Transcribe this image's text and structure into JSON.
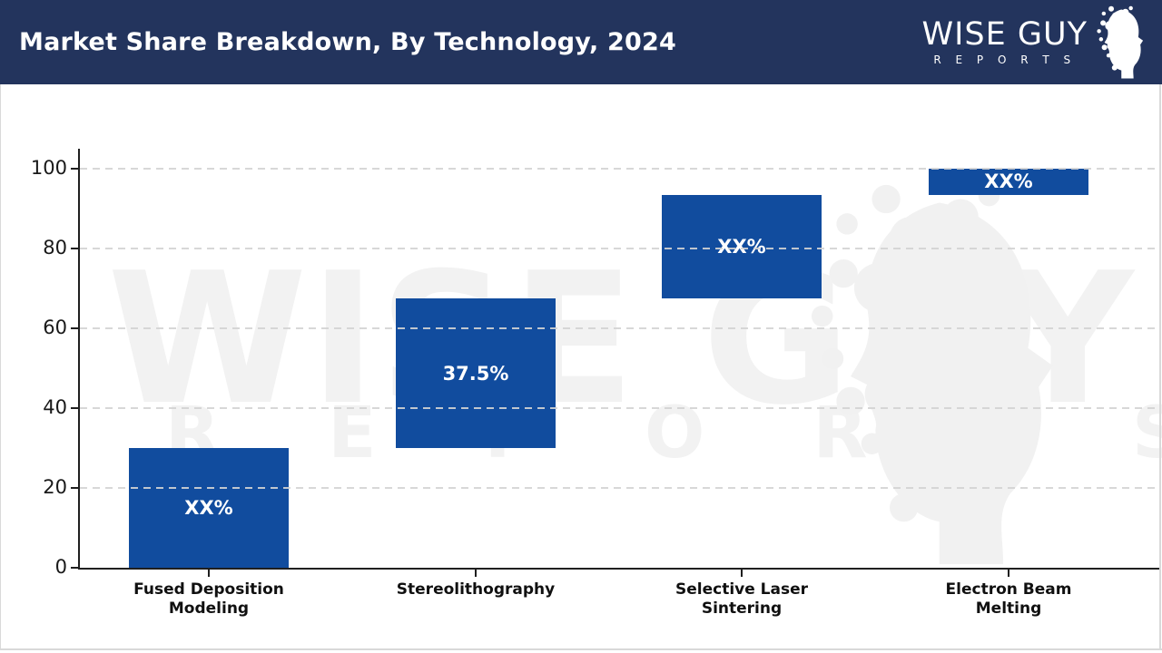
{
  "header": {
    "title": "Market Share Breakdown, By Technology, 2024",
    "logo": {
      "name": "WISE GUY",
      "subtitle": "R E P O R T S"
    }
  },
  "watermark": {
    "name": "WISE GUY",
    "subtitle": "R E P O R T S"
  },
  "colors": {
    "header_bg": "#23345d",
    "bar": "#114c9e",
    "grid": "#d3d3d3",
    "axis": "#1f1f1f",
    "watermark": "#f2f2f2",
    "value_label": "#ffffff"
  },
  "chart_data": {
    "type": "bar",
    "variant": "floating-segment waterfall (stacked market-share breakdown)",
    "title": "Market Share Breakdown, By Technology, 2024",
    "categories": [
      "Fused Deposition Modeling",
      "Stereolithography",
      "Selective Laser Sintering",
      "Electron Beam Melting"
    ],
    "category_label_lines": [
      [
        "Fused Deposition",
        "Modeling"
      ],
      [
        "Stereolithography"
      ],
      [
        "Selective Laser",
        "Sintering"
      ],
      [
        "Electron Beam",
        "Melting"
      ]
    ],
    "segments": [
      {
        "category": "Fused Deposition Modeling",
        "start": 0,
        "end": 30,
        "value_label": "XX%"
      },
      {
        "category": "Stereolithography",
        "start": 30,
        "end": 67.5,
        "value_label": "37.5%"
      },
      {
        "category": "Selective Laser Sintering",
        "start": 67.5,
        "end": 93.5,
        "value_label": "XX%"
      },
      {
        "category": "Electron Beam Melting",
        "start": 93.5,
        "end": 100,
        "value_label": "XX%"
      }
    ],
    "xlabel": "",
    "ylabel": "",
    "yticks": [
      0,
      20,
      40,
      60,
      80,
      100
    ],
    "ylim": [
      0,
      105
    ],
    "grid": "horizontal dashed gridlines drawn over bars",
    "legend": "none",
    "bar_color": "#114c9e"
  }
}
